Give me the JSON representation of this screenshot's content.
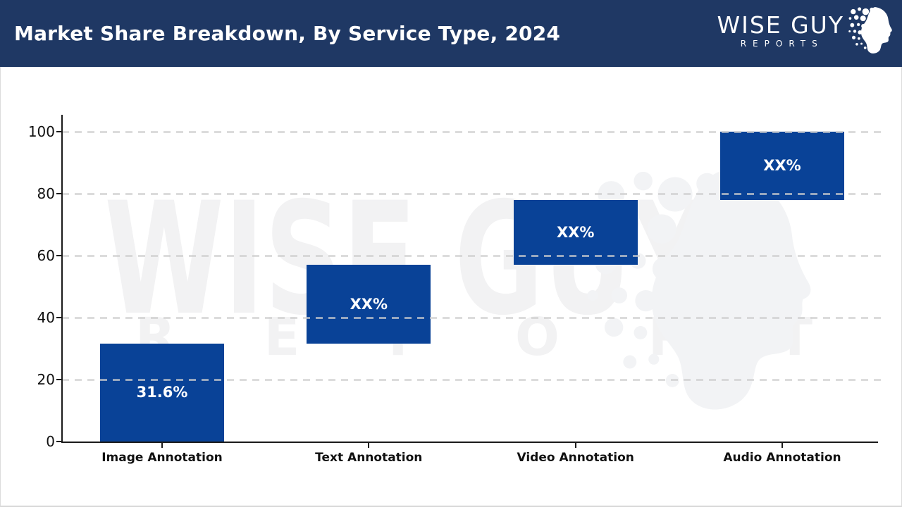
{
  "header": {
    "title": "Market Share Breakdown, By Service Type, 2024",
    "logo_line1": "WISE GUY",
    "logo_line2": "REPORTS"
  },
  "watermark": {
    "line1": "WISE GUY",
    "line2": "R E P O R T S"
  },
  "chart_data": {
    "type": "bar",
    "subtype": "waterfall",
    "title": "Market Share Breakdown, By Service Type, 2024",
    "categories": [
      "Image Annotation",
      "Text Annotation",
      "Video Annotation",
      "Audio Annotation"
    ],
    "segments": [
      {
        "category": "Image Annotation",
        "from": 0,
        "to": 31.6,
        "label": "31.6%"
      },
      {
        "category": "Text Annotation",
        "from": 31.6,
        "to": 57,
        "label": "XX%"
      },
      {
        "category": "Video Annotation",
        "from": 57,
        "to": 78,
        "label": "XX%"
      },
      {
        "category": "Audio Annotation",
        "from": 78,
        "to": 100,
        "label": "XX%"
      }
    ],
    "yticks": [
      0,
      20,
      40,
      60,
      80,
      100
    ],
    "ylim": [
      0,
      105
    ],
    "xlabel": "",
    "ylabel": "",
    "grid": {
      "axis": "y",
      "style": "dashed"
    },
    "legend": "none",
    "colors": {
      "bar": "#094297",
      "bar_label": "#ffffff",
      "header_bg": "#1f3864",
      "header_text": "#ffffff",
      "watermark": "#f2f2f3",
      "gridline": "#dcdcdc",
      "axis": "#1a1a1a"
    }
  }
}
